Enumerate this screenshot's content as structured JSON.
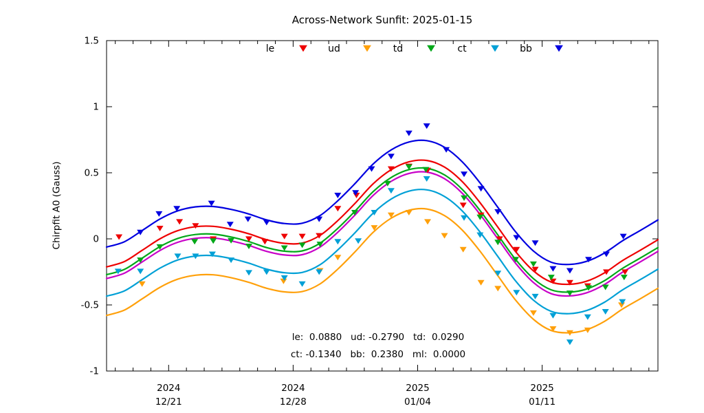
{
  "labels": {
    "title": "Across-Network Sunfit: 2025-01-15",
    "ylabel": "Chirpfit A0 (Gauss)",
    "fit_line1": "le:  0.0880   ud: -0.2790   td:  0.0290",
    "fit_line2": "ct: -0.1340   bb:  0.2380   ml:  0.0000"
  },
  "chart_data": {
    "type": "line+scatter",
    "title": "Across-Network Sunfit: 2025-01-15",
    "xlabel": "",
    "ylabel": "Chirpfit A0 (Gauss)",
    "ylim": [
      -1,
      1.5
    ],
    "grid": false,
    "legend_position": "top-inside",
    "yticks": [
      {
        "v": 1.5,
        "label": "1.5"
      },
      {
        "v": 1.0,
        "label": "1"
      },
      {
        "v": 0.5,
        "label": "0.5"
      },
      {
        "v": 0.0,
        "label": "0"
      },
      {
        "v": -0.5,
        "label": "-0.5"
      },
      {
        "v": -1.0,
        "label": "-1"
      }
    ],
    "x_axis": {
      "span_days": 31,
      "minor_tick_days": 1,
      "tick_offset_days": 0.49,
      "major_tick_indices": [
        3,
        10,
        17,
        24
      ],
      "major_ticks": [
        {
          "year": "2024",
          "date": "12/21"
        },
        {
          "year": "2024",
          "date": "12/28"
        },
        {
          "year": "2025",
          "date": "01/04"
        },
        {
          "year": "2025",
          "date": "01/11"
        }
      ]
    },
    "fit_offsets": {
      "le": 0.088,
      "ud": -0.279,
      "td": 0.029,
      "ct": -0.134,
      "bb": 0.238,
      "ml": 0.0
    },
    "mean_curve": {
      "name": "ml",
      "color": "#c800c8",
      "t0": 0,
      "dt": 1,
      "values": [
        -0.3,
        -0.26,
        -0.175,
        -0.088,
        -0.026,
        0.004,
        0.007,
        -0.015,
        -0.05,
        -0.095,
        -0.122,
        -0.12,
        -0.062,
        0.05,
        0.185,
        0.33,
        0.435,
        0.495,
        0.505,
        0.455,
        0.345,
        0.185,
        0.0,
        -0.185,
        -0.33,
        -0.415,
        -0.432,
        -0.408,
        -0.345,
        -0.253,
        -0.175,
        -0.095
      ]
    },
    "legend": [
      "le",
      "ud",
      "td",
      "ct",
      "bb"
    ],
    "series": [
      {
        "name": "ud",
        "color": "#ffa00a",
        "offset": -0.279,
        "points": [
          [
            2.0,
            -0.34
          ],
          [
            9.95,
            -0.32
          ],
          [
            12.0,
            -0.24
          ],
          [
            13.0,
            -0.14
          ],
          [
            15.05,
            0.085
          ],
          [
            16.0,
            0.18
          ],
          [
            17.0,
            0.2
          ],
          [
            18.05,
            0.13
          ],
          [
            19.0,
            0.025
          ],
          [
            20.05,
            -0.08
          ],
          [
            21.05,
            -0.33
          ],
          [
            22.0,
            -0.375
          ],
          [
            24.0,
            -0.56
          ],
          [
            25.1,
            -0.68
          ],
          [
            26.05,
            -0.71
          ],
          [
            27.05,
            -0.69
          ],
          [
            28.95,
            -0.5
          ]
        ]
      },
      {
        "name": "ct",
        "color": "#00a0d6",
        "offset": -0.134,
        "points": [
          [
            0.65,
            -0.245
          ],
          [
            1.9,
            -0.245
          ],
          [
            4.0,
            -0.13
          ],
          [
            5.0,
            -0.13
          ],
          [
            5.95,
            -0.115
          ],
          [
            7.0,
            -0.16
          ],
          [
            8.0,
            -0.255
          ],
          [
            9.0,
            -0.25
          ],
          [
            10.0,
            -0.295
          ],
          [
            11.0,
            -0.34
          ],
          [
            11.95,
            -0.25
          ],
          [
            13.0,
            -0.02
          ],
          [
            14.15,
            -0.015
          ],
          [
            15.05,
            0.2
          ],
          [
            16.0,
            0.365
          ],
          [
            18.0,
            0.455
          ],
          [
            20.1,
            0.16
          ],
          [
            21.0,
            0.03
          ],
          [
            22.0,
            -0.26
          ],
          [
            23.05,
            -0.405
          ],
          [
            24.1,
            -0.435
          ],
          [
            25.1,
            -0.58
          ],
          [
            26.05,
            -0.78
          ],
          [
            27.05,
            -0.59
          ],
          [
            28.05,
            -0.55
          ],
          [
            29.0,
            -0.475
          ]
        ]
      },
      {
        "name": "le",
        "color": "#ee0000",
        "offset": 0.088,
        "points": [
          [
            0.7,
            0.015
          ],
          [
            3.0,
            0.08
          ],
          [
            4.1,
            0.13
          ],
          [
            5.0,
            0.1
          ],
          [
            6.0,
            0.0
          ],
          [
            8.0,
            0.0
          ],
          [
            8.9,
            -0.02
          ],
          [
            10.0,
            0.02
          ],
          [
            11.0,
            0.02
          ],
          [
            11.95,
            0.025
          ],
          [
            13.0,
            0.23
          ],
          [
            14.05,
            0.33
          ],
          [
            16.0,
            0.53
          ],
          [
            17.0,
            0.55
          ],
          [
            18.05,
            0.52
          ],
          [
            20.05,
            0.255
          ],
          [
            21.05,
            0.18
          ],
          [
            22.1,
            0.0
          ],
          [
            23.05,
            -0.08
          ],
          [
            24.1,
            -0.23
          ],
          [
            25.1,
            -0.32
          ],
          [
            26.05,
            -0.33
          ],
          [
            27.05,
            -0.355
          ],
          [
            28.1,
            -0.25
          ],
          [
            29.15,
            -0.25
          ]
        ]
      },
      {
        "name": "td",
        "color": "#00a818",
        "offset": 0.029,
        "points": [
          [
            1.9,
            -0.16
          ],
          [
            3.0,
            -0.06
          ],
          [
            4.95,
            -0.02
          ],
          [
            6.0,
            -0.015
          ],
          [
            7.0,
            -0.012
          ],
          [
            8.0,
            -0.055
          ],
          [
            10.0,
            -0.068
          ],
          [
            11.0,
            -0.047
          ],
          [
            12.0,
            -0.04
          ],
          [
            13.95,
            0.2
          ],
          [
            15.8,
            0.42
          ],
          [
            17.0,
            0.545
          ],
          [
            17.95,
            0.525
          ],
          [
            20.1,
            0.31
          ],
          [
            21.0,
            0.165
          ],
          [
            22.0,
            -0.025
          ],
          [
            23.0,
            -0.155
          ],
          [
            24.0,
            -0.19
          ],
          [
            25.0,
            -0.29
          ],
          [
            26.05,
            -0.41
          ],
          [
            27.1,
            -0.37
          ],
          [
            28.05,
            -0.365
          ],
          [
            29.1,
            -0.29
          ]
        ]
      },
      {
        "name": "bb",
        "color": "#0000e0",
        "offset": 0.238,
        "points": [
          [
            1.9,
            0.05
          ],
          [
            2.95,
            0.19
          ],
          [
            3.95,
            0.23
          ],
          [
            5.9,
            0.27
          ],
          [
            6.95,
            0.11
          ],
          [
            7.95,
            0.15
          ],
          [
            9.0,
            0.125
          ],
          [
            11.95,
            0.15
          ],
          [
            13.0,
            0.33
          ],
          [
            14.0,
            0.35
          ],
          [
            14.9,
            0.53
          ],
          [
            16.0,
            0.625
          ],
          [
            17.0,
            0.8
          ],
          [
            18.0,
            0.855
          ],
          [
            19.1,
            0.675
          ],
          [
            20.1,
            0.49
          ],
          [
            21.05,
            0.38
          ],
          [
            22.0,
            0.205
          ],
          [
            23.05,
            0.01
          ],
          [
            24.1,
            -0.03
          ],
          [
            25.1,
            -0.225
          ],
          [
            26.05,
            -0.24
          ],
          [
            27.1,
            -0.155
          ],
          [
            28.1,
            -0.115
          ],
          [
            29.05,
            0.02
          ]
        ]
      }
    ]
  }
}
